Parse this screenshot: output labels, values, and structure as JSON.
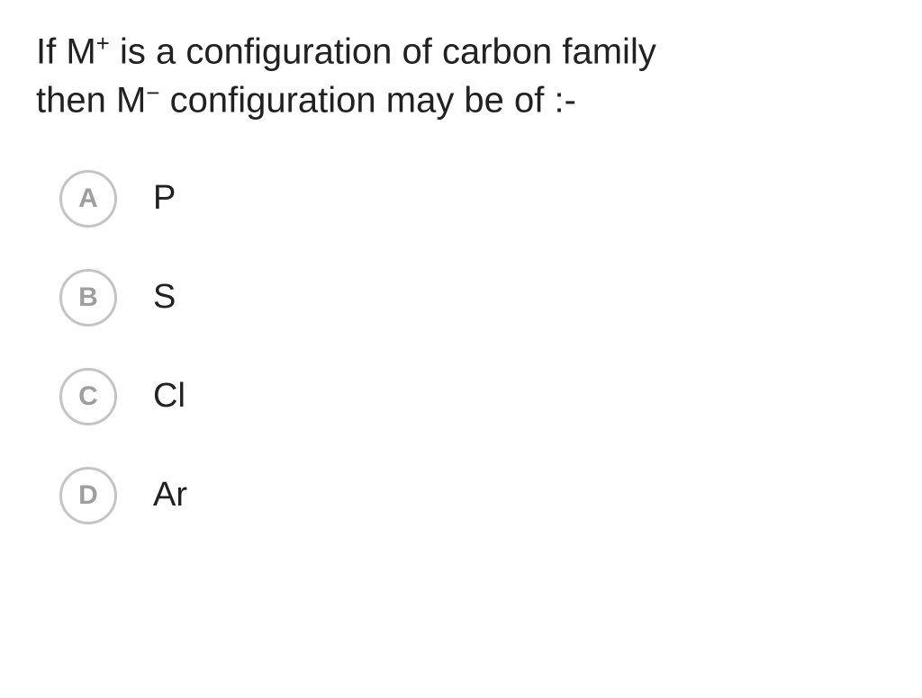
{
  "question": {
    "line1_pre": "If M",
    "line1_sup": "+",
    "line1_post": " is a configuration of carbon family",
    "line2_pre": "then M",
    "line2_sup": "−",
    "line2_post": " configuration may be of :-"
  },
  "options": [
    {
      "letter": "A",
      "text": "P"
    },
    {
      "letter": "B",
      "text": "S"
    },
    {
      "letter": "C",
      "text": "Cl"
    },
    {
      "letter": "D",
      "text": "Ar"
    }
  ],
  "styles": {
    "badge_border_color": "#c4c4c4",
    "badge_text_color": "#9e9e9e",
    "question_color": "#212121",
    "option_text_color": "#212121",
    "background_color": "#ffffff",
    "question_fontsize": 40,
    "option_fontsize": 38,
    "badge_diameter": 64,
    "badge_letter_fontsize": 30
  }
}
